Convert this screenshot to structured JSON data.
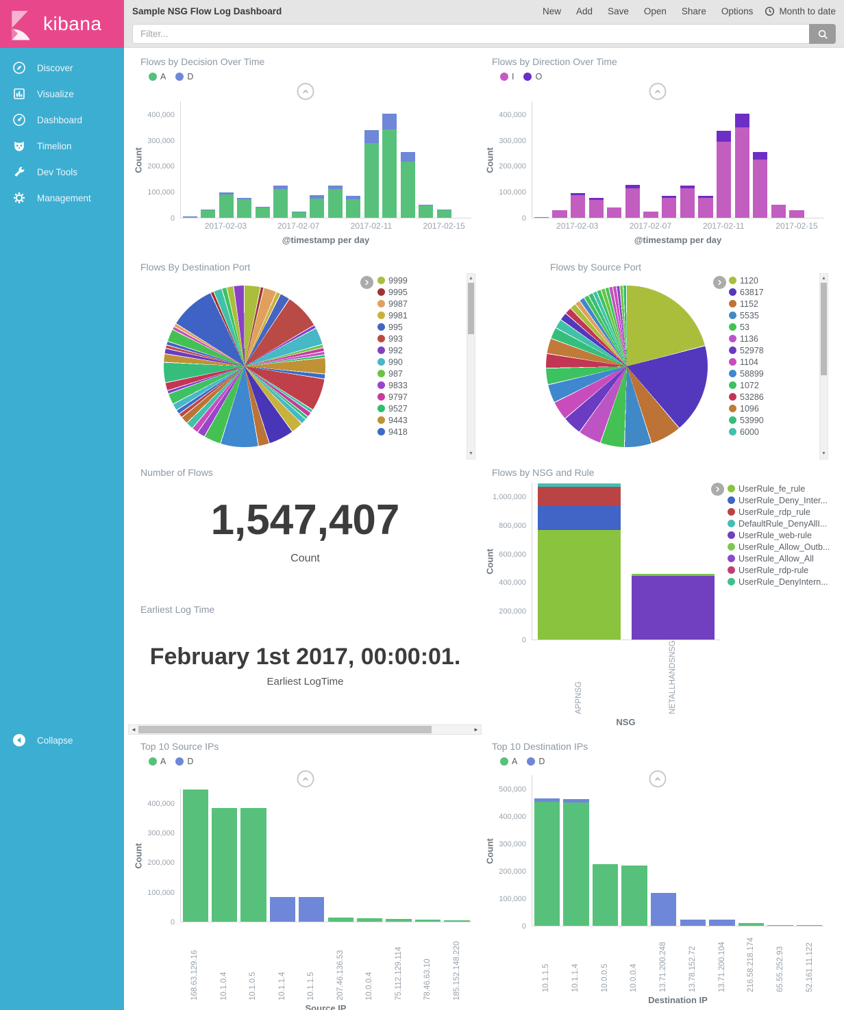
{
  "sidebar": {
    "logo_text": "kibana",
    "items": [
      {
        "icon": "compass-icon",
        "label": "Discover"
      },
      {
        "icon": "bar-chart-icon",
        "label": "Visualize"
      },
      {
        "icon": "gauge-icon",
        "label": "Dashboard"
      },
      {
        "icon": "timelion-icon",
        "label": "Timelion"
      },
      {
        "icon": "wrench-icon",
        "label": "Dev Tools"
      },
      {
        "icon": "gear-icon",
        "label": "Management"
      }
    ],
    "collapse_label": "Collapse"
  },
  "topbar": {
    "title": "Sample NSG Flow Log Dashboard",
    "menu": [
      "New",
      "Add",
      "Save",
      "Open",
      "Share",
      "Options"
    ],
    "time_picker_label": "Month to date"
  },
  "filter": {
    "placeholder": "Filter..."
  },
  "colors": {
    "brand_pink": "#E8488B",
    "sidebar_blue": "#3CAED2",
    "topbar_gray": "#E5E5E5",
    "series_A_green": "#57C17B",
    "series_D_blue": "#6F87D8",
    "series_I_magenta": "#C15EC0",
    "series_O_purple": "#6D2EC5"
  },
  "panels": {
    "decision": {
      "title": "Flows by Decision Over Time",
      "type": "bar",
      "legend": [
        {
          "label": "A",
          "color": "#57C17B"
        },
        {
          "label": "D",
          "color": "#6F87D8"
        }
      ],
      "ylabel": "Count",
      "xlabel": "@timestamp per day",
      "yticks": [
        0,
        100000,
        200000,
        300000,
        400000
      ],
      "ymax": 450000,
      "categories": [
        "2017-02-01",
        "2017-02-02",
        "2017-02-03",
        "2017-02-04",
        "2017-02-05",
        "2017-02-06",
        "2017-02-07",
        "2017-02-08",
        "2017-02-09",
        "2017-02-10",
        "2017-02-11",
        "2017-02-12",
        "2017-02-13",
        "2017-02-14",
        "2017-02-15"
      ],
      "xtick_labels": {
        "2": "2017-02-03",
        "6": "2017-02-07",
        "10": "2017-02-11",
        "14": "2017-02-15"
      },
      "series": [
        {
          "name": "A",
          "color": "#57C17B",
          "values": [
            3000,
            28000,
            90000,
            72000,
            40000,
            112000,
            22000,
            73000,
            112000,
            72000,
            288000,
            342000,
            216000,
            48000,
            28000
          ]
        },
        {
          "name": "D",
          "color": "#6F87D8",
          "values": [
            500,
            1000,
            7000,
            5000,
            1000,
            14000,
            1000,
            13000,
            14000,
            14000,
            50000,
            60000,
            37000,
            1000,
            500
          ]
        }
      ]
    },
    "direction": {
      "title": "Flows by Direction Over Time",
      "type": "bar",
      "legend": [
        {
          "label": "I",
          "color": "#C15EC0"
        },
        {
          "label": "O",
          "color": "#6D2EC5"
        }
      ],
      "ylabel": "Count",
      "xlabel": "@timestamp per day",
      "yticks": [
        0,
        100000,
        200000,
        300000,
        400000
      ],
      "ymax": 450000,
      "categories": [
        "2017-02-01",
        "2017-02-02",
        "2017-02-03",
        "2017-02-04",
        "2017-02-05",
        "2017-02-06",
        "2017-02-07",
        "2017-02-08",
        "2017-02-09",
        "2017-02-10",
        "2017-02-11",
        "2017-02-12",
        "2017-02-13",
        "2017-02-14",
        "2017-02-15"
      ],
      "xtick_labels": {
        "2": "2017-02-03",
        "6": "2017-02-07",
        "10": "2017-02-11",
        "14": "2017-02-15"
      },
      "series": [
        {
          "name": "I",
          "color": "#C15EC0",
          "values": [
            3000,
            29000,
            88000,
            68000,
            41000,
            113000,
            23000,
            78000,
            115000,
            78000,
            295000,
            350000,
            224000,
            49000,
            28000
          ]
        },
        {
          "name": "O",
          "color": "#6D2EC5",
          "values": [
            0,
            0,
            9000,
            9000,
            0,
            13000,
            0,
            8000,
            11000,
            8000,
            43000,
            52000,
            29000,
            0,
            0
          ]
        }
      ]
    },
    "dest_port": {
      "title": "Flows By Destination Port",
      "type": "pie",
      "legend": [
        {
          "label": "9999",
          "color": "#AABE3C"
        },
        {
          "label": "9995",
          "color": "#9E3533"
        },
        {
          "label": "9987",
          "color": "#DFA15D"
        },
        {
          "label": "9981",
          "color": "#C9B23C"
        },
        {
          "label": "995",
          "color": "#4565C0"
        },
        {
          "label": "993",
          "color": "#BA4A45"
        },
        {
          "label": "992",
          "color": "#8041C6"
        },
        {
          "label": "990",
          "color": "#46B8C6"
        },
        {
          "label": "987",
          "color": "#6CC344"
        },
        {
          "label": "9833",
          "color": "#9745C9"
        },
        {
          "label": "9797",
          "color": "#C73A9C"
        },
        {
          "label": "9527",
          "color": "#2EBE6E"
        },
        {
          "label": "9443",
          "color": "#BE9235"
        },
        {
          "label": "9418",
          "color": "#3D6BC5"
        }
      ],
      "slices": [
        [
          "#AABE3C",
          3.0
        ],
        [
          "#9E3533",
          0.5
        ],
        [
          "#DFA15D",
          2.4
        ],
        [
          "#C9B23C",
          0.7
        ],
        [
          "#4565C0",
          1.8
        ],
        [
          "#BA4A45",
          6.8
        ],
        [
          "#8041C6",
          0.5
        ],
        [
          "#46B8C6",
          3.2
        ],
        [
          "#6CC344",
          0.5
        ],
        [
          "#C73A9C",
          0.6
        ],
        [
          "#BE53C3",
          0.5
        ],
        [
          "#2EBE6E",
          0.4
        ],
        [
          "#BE9235",
          3.0
        ],
        [
          "#3D6BC5",
          0.8
        ],
        [
          "#BF4048",
          6.2
        ],
        [
          "#41C1A8",
          0.5
        ],
        [
          "#C73A9C",
          0.8
        ],
        [
          "#35BE7B",
          0.5
        ],
        [
          "#46B8C6",
          1.0
        ],
        [
          "#C9B23C",
          2.2
        ],
        [
          "#4935B8",
          4.8
        ],
        [
          "#BD7335",
          2.0
        ],
        [
          "#3F87CE",
          7.2
        ],
        [
          "#44C152",
          3.2
        ],
        [
          "#9745C9",
          1.4
        ],
        [
          "#C94CBC",
          1.1
        ],
        [
          "#41C1A8",
          1.3
        ],
        [
          "#BD7335",
          1.3
        ],
        [
          "#BA4A45",
          0.7
        ],
        [
          "#3D6BC5",
          0.7
        ],
        [
          "#46B8C6",
          1.2
        ],
        [
          "#3DC261",
          2.0
        ],
        [
          "#8041C6",
          0.5
        ],
        [
          "#C23553",
          1.4
        ],
        [
          "#35BE7B",
          3.8
        ],
        [
          "#BE9235",
          1.5
        ],
        [
          "#6B3BC2",
          0.9
        ],
        [
          "#BA4A45",
          0.5
        ],
        [
          "#4565C0",
          0.6
        ],
        [
          "#44C152",
          2.3
        ],
        [
          "#C94CBC",
          0.5
        ],
        [
          "#DFA15D",
          0.5
        ],
        [
          "#3F63C5",
          8.8
        ],
        [
          "#9E3533",
          0.5
        ],
        [
          "#41C1A8",
          1.5
        ],
        [
          "#3DC261",
          0.8
        ],
        [
          "#AABE3C",
          1.2
        ],
        [
          "#8A41C6",
          1.9
        ]
      ]
    },
    "source_port": {
      "title": "Flows by Source Port",
      "type": "pie",
      "legend": [
        {
          "label": "1120",
          "color": "#AABE3C"
        },
        {
          "label": "63817",
          "color": "#5338BE"
        },
        {
          "label": "1152",
          "color": "#BD7335"
        },
        {
          "label": "5535",
          "color": "#4189C6"
        },
        {
          "label": "53",
          "color": "#44C152"
        },
        {
          "label": "1136",
          "color": "#BE53C3"
        },
        {
          "label": "52978",
          "color": "#6B3BC2"
        },
        {
          "label": "1104",
          "color": "#C94CBC"
        },
        {
          "label": "58899",
          "color": "#3F87CE"
        },
        {
          "label": "1072",
          "color": "#3DC261"
        },
        {
          "label": "53286",
          "color": "#C23553"
        },
        {
          "label": "1096",
          "color": "#C07B38"
        },
        {
          "label": "53990",
          "color": "#35BE7B"
        },
        {
          "label": "6000",
          "color": "#41C1A8"
        }
      ],
      "slices": [
        [
          "#AABE3C",
          20.5
        ],
        [
          "#5338BE",
          17.5
        ],
        [
          "#BD7335",
          6.0
        ],
        [
          "#4189C6",
          5.2
        ],
        [
          "#44C152",
          4.6
        ],
        [
          "#BE53C3",
          4.4
        ],
        [
          "#6B3BC2",
          3.7
        ],
        [
          "#C94CBC",
          3.6
        ],
        [
          "#3F87CE",
          3.5
        ],
        [
          "#3DC261",
          3.1
        ],
        [
          "#C23553",
          2.7
        ],
        [
          "#C07B38",
          2.9
        ],
        [
          "#35BE7B",
          2.1
        ],
        [
          "#41C1A8",
          1.7
        ],
        [
          "#5338BE",
          1.4
        ],
        [
          "#C23553",
          1.2
        ],
        [
          "#AABE3C",
          1.1
        ],
        [
          "#DFA15D",
          0.9
        ],
        [
          "#3F87CE",
          0.9
        ],
        [
          "#44C152",
          0.8
        ],
        [
          "#35BE7B",
          0.8
        ],
        [
          "#41C1A8",
          0.7
        ],
        [
          "#3DC261",
          0.7
        ],
        [
          "#6CC344",
          0.7
        ],
        [
          "#44C152",
          0.6
        ],
        [
          "#BE53C3",
          0.6
        ],
        [
          "#C94CBC",
          0.6
        ],
        [
          "#8A41C6",
          0.5
        ],
        [
          "#6CC344",
          0.5
        ],
        [
          "#2EBE6E",
          0.5
        ]
      ]
    },
    "num_flows": {
      "title": "Number of Flows",
      "type": "metric",
      "value": "1,547,407",
      "label": "Count"
    },
    "earliest": {
      "title": "Earliest Log Time",
      "type": "metric",
      "value": "February 1st 2017, 00:00:01.",
      "label": "Earliest LogTime"
    },
    "nsg_rule": {
      "title": "Flows by NSG and Rule",
      "type": "bar",
      "legend": [
        {
          "label": "UserRule_fe_rule",
          "color": "#8AC33E"
        },
        {
          "label": "UserRule_Deny_Inter...",
          "color": "#4065C6"
        },
        {
          "label": "UserRule_rdp_rule",
          "color": "#BA4444"
        },
        {
          "label": "DefaultRule_DenyAllI...",
          "color": "#45BDB3"
        },
        {
          "label": "UserRule_web-rule",
          "color": "#7040C0"
        },
        {
          "label": "UserRule_Allow_Outb...",
          "color": "#7CC850"
        },
        {
          "label": "UserRule_Allow_All",
          "color": "#8A4BD0"
        },
        {
          "label": "UserRule_rdp-rule",
          "color": "#C04070"
        },
        {
          "label": "UserRule_DenyIntern...",
          "color": "#41BE8C"
        }
      ],
      "ylabel": "Count",
      "xlabel": "NSG",
      "yticks": [
        0,
        200000,
        400000,
        600000,
        800000,
        1000000
      ],
      "ymax": 1100000,
      "categories": [
        "APPNSG",
        "NETALLHANDSNSG"
      ],
      "series": [
        {
          "name": "UserRule_fe_rule",
          "color": "#8AC33E",
          "values": [
            765000,
            0
          ]
        },
        {
          "name": "UserRule_Deny_Inter...",
          "color": "#4065C6",
          "values": [
            165000,
            0
          ]
        },
        {
          "name": "UserRule_rdp_rule",
          "color": "#BA4444",
          "values": [
            135000,
            0
          ]
        },
        {
          "name": "DefaultRule_DenyAllI...",
          "color": "#45BDB3",
          "values": [
            25000,
            0
          ]
        },
        {
          "name": "UserRule_web-rule",
          "color": "#7040C0",
          "values": [
            0,
            445000
          ]
        },
        {
          "name": "UserRule_Allow_Outb...",
          "color": "#7CC850",
          "values": [
            0,
            15000
          ]
        },
        {
          "name": "UserRule_Allow_All",
          "color": "#8A4BD0",
          "values": [
            0,
            0
          ]
        },
        {
          "name": "UserRule_rdp-rule",
          "color": "#C04070",
          "values": [
            0,
            0
          ]
        },
        {
          "name": "UserRule_DenyIntern...",
          "color": "#41BE8C",
          "values": [
            0,
            0
          ]
        }
      ]
    },
    "source_ips": {
      "title": "Top 10 Source IPs",
      "type": "bar",
      "legend": [
        {
          "label": "A",
          "color": "#57C17B"
        },
        {
          "label": "D",
          "color": "#6F87D8"
        }
      ],
      "ylabel": "Count",
      "xlabel": "Source IP",
      "yticks": [
        0,
        100000,
        200000,
        300000,
        400000
      ],
      "ymax": 450000,
      "categories": [
        "168.63.129.16",
        "10.1.0.4",
        "10.1.0.5",
        "10.1.1.4",
        "10.1.1.5",
        "207.46.136.53",
        "10.0.0.4",
        "75.112.129.114",
        "78.46.63.10",
        "185.152.148.220"
      ],
      "series": [
        {
          "name": "A",
          "color": "#57C17B",
          "values": [
            445000,
            382000,
            382000,
            0,
            0,
            14000,
            11000,
            9000,
            7000,
            5000
          ]
        },
        {
          "name": "D",
          "color": "#6F87D8",
          "values": [
            0,
            0,
            0,
            83000,
            82000,
            0,
            0,
            0,
            0,
            0
          ]
        }
      ]
    },
    "dest_ips": {
      "title": "Top 10 Destination IPs",
      "type": "bar",
      "legend": [
        {
          "label": "A",
          "color": "#57C17B"
        },
        {
          "label": "D",
          "color": "#6F87D8"
        }
      ],
      "ylabel": "Count",
      "xlabel": "Destination IP",
      "yticks": [
        0,
        100000,
        200000,
        300000,
        400000,
        500000
      ],
      "ymax": 550000,
      "categories": [
        "10.1.1.5",
        "10.1.1.4",
        "10.0.0.5",
        "10.0.0.4",
        "13.71.200.248",
        "13.78.152.72",
        "13.71.200.104",
        "216.58.218.174",
        "65.55.252.93",
        "52.161.11.122"
      ],
      "series": [
        {
          "name": "A",
          "color": "#57C17B",
          "values": [
            452000,
            449000,
            226000,
            221000,
            0,
            0,
            0,
            11000,
            1000,
            800
          ]
        },
        {
          "name": "D",
          "color": "#6F87D8",
          "values": [
            12000,
            12000,
            0,
            0,
            120000,
            22000,
            22000,
            0,
            0,
            0
          ]
        }
      ]
    }
  }
}
